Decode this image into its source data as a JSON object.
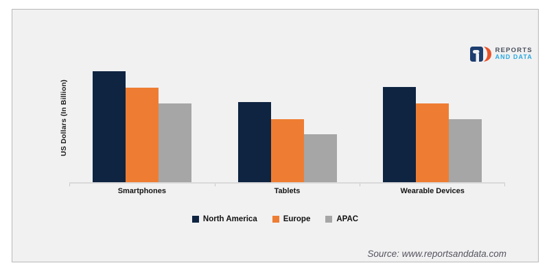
{
  "logo": {
    "line1": "REPORTS",
    "line2": "AND DATA",
    "mark_navy": "#1d3e6e",
    "mark_orange": "#e8542a",
    "text_dark": "#49505a",
    "text_cyan": "#2aa9e0"
  },
  "source": "Source: www.reportsanddata.com",
  "chart_data": {
    "type": "bar",
    "title": "",
    "categories": [
      "Smartphones",
      "Tablets",
      "Wearable Devices"
    ],
    "series": [
      {
        "name": "North America",
        "color": "#0e2441",
        "values": [
          100,
          72,
          86
        ]
      },
      {
        "name": "Europe",
        "color": "#ee7d33",
        "values": [
          85,
          57,
          71
        ]
      },
      {
        "name": "APAC",
        "color": "#a6a6a6",
        "values": [
          71,
          43,
          57
        ]
      }
    ],
    "xlabel": "",
    "ylabel": "US Dollars (In Billion)",
    "ylim": [
      0,
      131
    ],
    "units": "relative scale (chart shows no numeric axis tick labels)",
    "grid": false,
    "legend_position": "bottom",
    "axis_color": "#d9d9d9",
    "background": "#f1f1f2"
  }
}
